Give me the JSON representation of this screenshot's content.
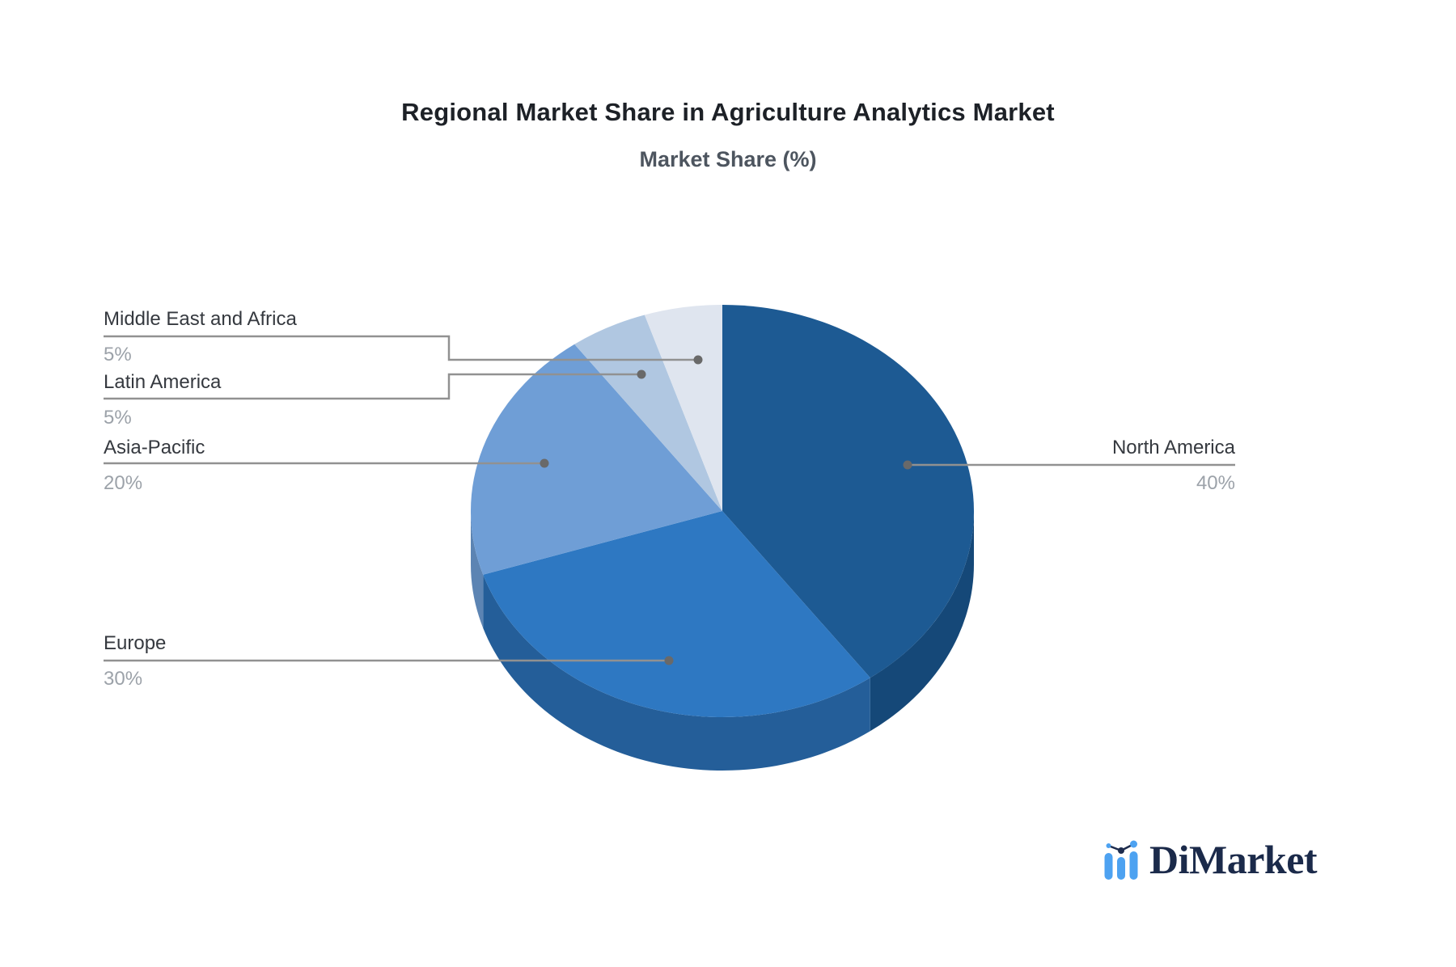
{
  "header": {
    "title": "Regional Market Share in Agriculture Analytics Market",
    "subtitle": "Market Share (%)"
  },
  "chart_data": {
    "type": "pie",
    "style": "3d-pie",
    "title": "Regional Market Share in Agriculture Analytics Market",
    "subtitle": "Market Share (%)",
    "unit": "%",
    "start_angle_deg": 90,
    "direction": "clockwise",
    "legend_position": "callout-labels",
    "categories": [
      "North America",
      "Europe",
      "Asia-Pacific",
      "Latin America",
      "Middle East and Africa"
    ],
    "values": [
      40,
      30,
      20,
      5,
      5
    ],
    "display_values": [
      "40%",
      "30%",
      "20%",
      "5%",
      "5%"
    ],
    "slice_colors": [
      "#1d5a93",
      "#2e78c2",
      "#6f9ed6",
      "#b0c7e1",
      "#dfe5ef"
    ],
    "slice_side_colors": [
      "#154878",
      "#245e99",
      "#5c84b3",
      "#8fa8c6",
      "#b9c3d3"
    ],
    "leader_line_color": "#919191",
    "dot_color": "#696969"
  },
  "callouts": [
    {
      "label": "North America",
      "value": "40%",
      "side": "right"
    },
    {
      "label": "Europe",
      "value": "30%",
      "side": "left"
    },
    {
      "label": "Asia-Pacific",
      "value": "20%",
      "side": "left"
    },
    {
      "label": "Latin America",
      "value": "5%",
      "side": "left"
    },
    {
      "label": "Middle East and Africa",
      "value": "5%",
      "side": "left"
    }
  ],
  "brand": {
    "name": "DiMarket",
    "icon": "bar-chart-trend-icon",
    "icon_bar_color": "#4da2f1",
    "icon_line_color": "#1e2c4e",
    "text_color": "#1b2a4a"
  }
}
